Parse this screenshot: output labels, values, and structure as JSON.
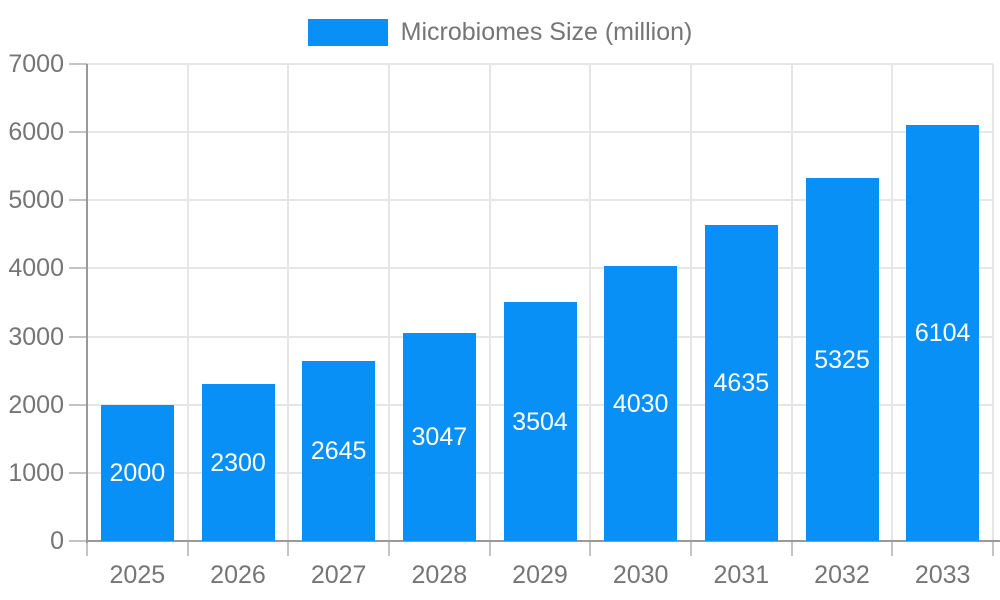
{
  "legend": {
    "label": "Microbiomes Size (million)"
  },
  "chart_data": {
    "type": "bar",
    "title": "",
    "xlabel": "",
    "ylabel": "",
    "legend": "Microbiomes Size (million)",
    "legend_position": "top",
    "categories": [
      "2025",
      "2026",
      "2027",
      "2028",
      "2029",
      "2030",
      "2031",
      "2032",
      "2033"
    ],
    "values": [
      2000,
      2300,
      2645,
      3047,
      3504,
      4030,
      4635,
      5325,
      6104
    ],
    "bar_labels": [
      "2000",
      "2300",
      "2645",
      "3047",
      "3504",
      "4030",
      "4635",
      "5325",
      "6104"
    ],
    "ylim": [
      0,
      7000
    ],
    "ytick_step": 1000,
    "yticks": [
      0,
      1000,
      2000,
      3000,
      4000,
      5000,
      6000,
      7000
    ],
    "grid": true,
    "colors": {
      "bar": "#0990f6",
      "axis_text": "#757575",
      "bar_label_text": "#ffffff",
      "grid": "#e6e6e6",
      "axis_line": "#999999",
      "tick": "#c4c4c4"
    }
  }
}
